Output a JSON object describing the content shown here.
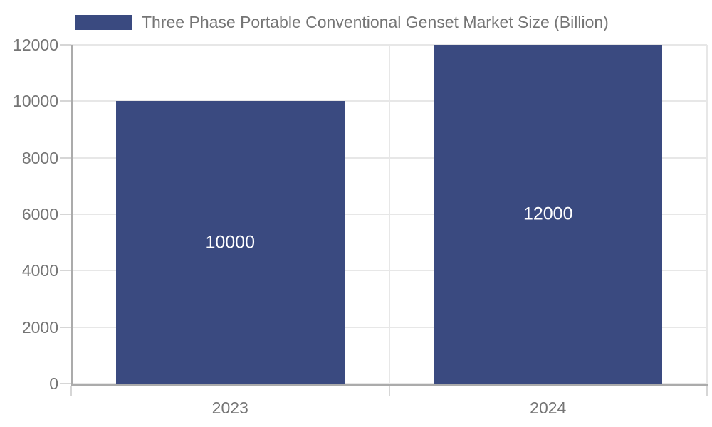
{
  "legend": {
    "label": "Three Phase Portable Conventional Genset Market Size (Billion)",
    "swatch_color": "#3A4A80"
  },
  "chart_data": {
    "type": "bar",
    "title": "Three Phase Portable Conventional Genset Market Size (Billion)",
    "categories": [
      "2023",
      "2024"
    ],
    "series": [
      {
        "name": "Three Phase Portable Conventional Genset Market Size (Billion)",
        "values": [
          10000,
          12000
        ]
      }
    ],
    "value_labels": [
      "10000",
      "12000"
    ],
    "xlabel": "",
    "ylabel": "",
    "ylim": [
      0,
      12000
    ],
    "yticks": [
      0,
      2000,
      4000,
      6000,
      8000,
      10000,
      12000
    ],
    "grid": true,
    "legend_position": "top",
    "bar_width_fraction": 0.72
  },
  "colors": {
    "bar": "#3A4A80",
    "value_label": "#FFFFFF",
    "text": "#757575",
    "axis_line": "#ABABAB",
    "gridline": "#E7E7E7",
    "tick_mark": "#D6D6D6",
    "background": "#FFFFFF"
  }
}
